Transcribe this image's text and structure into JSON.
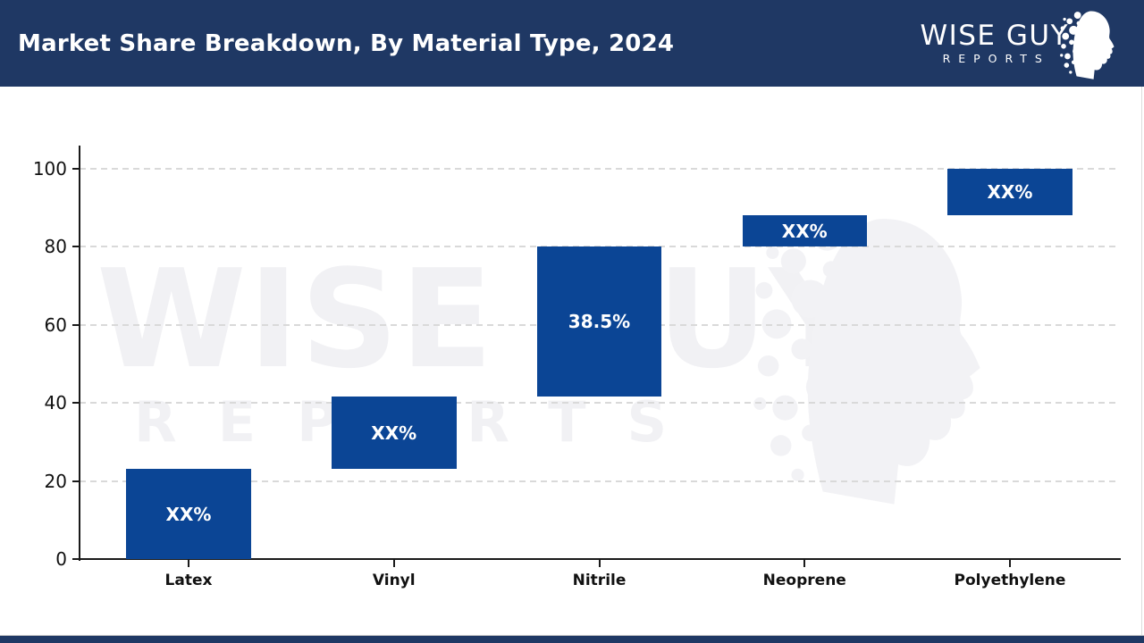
{
  "header": {
    "title": "Market Share Breakdown, By Material Type, 2024",
    "brand": {
      "line1": "WISE GUY",
      "line2": "REPORTS"
    }
  },
  "watermark": {
    "line1": "WISE GUY",
    "line2": "REPORTS"
  },
  "colors": {
    "header_bg": "#1f3864",
    "footer_bg": "#1f3864",
    "bar": "#0b4595",
    "bar_label": "#ffffff",
    "gridline": "#d9d9d9",
    "axis": "#1a1a1a",
    "watermark": "#f1f1f4"
  },
  "chart_data": {
    "type": "bar",
    "subtype": "waterfall",
    "title": "Market Share Breakdown, By Material Type, 2024",
    "xlabel": "",
    "ylabel": "",
    "categories": [
      "Latex",
      "Vinyl",
      "Nitrile",
      "Neoprene",
      "Polyethylene"
    ],
    "segments": [
      {
        "category": "Latex",
        "value": 23,
        "start": 0,
        "end": 23,
        "label": "XX%"
      },
      {
        "category": "Vinyl",
        "value": 18.5,
        "start": 23,
        "end": 41.5,
        "label": "XX%"
      },
      {
        "category": "Nitrile",
        "value": 38.5,
        "start": 41.5,
        "end": 80,
        "label": "38.5%"
      },
      {
        "category": "Neoprene",
        "value": 8,
        "start": 80,
        "end": 88,
        "label": "XX%"
      },
      {
        "category": "Polyethylene",
        "value": 12,
        "start": 88,
        "end": 100,
        "label": "XX%"
      }
    ],
    "yticks": [
      0,
      20,
      40,
      60,
      80,
      100
    ],
    "ylim": [
      0,
      105
    ],
    "grid": "horizontal-dashed",
    "legend": "none",
    "bar_color": "#0b4595",
    "label_color": "#ffffff"
  }
}
